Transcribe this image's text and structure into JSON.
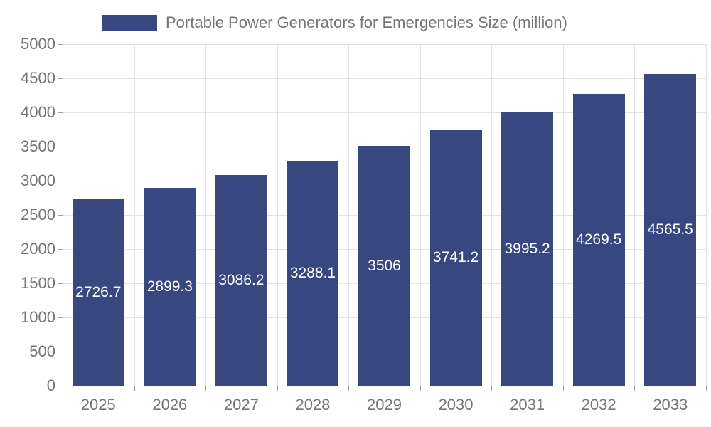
{
  "chart_data": {
    "type": "bar",
    "title": "Portable Power Generators for Emergencies Size (million)",
    "categories": [
      "2025",
      "2026",
      "2027",
      "2028",
      "2029",
      "2030",
      "2031",
      "2032",
      "2033"
    ],
    "values": [
      2726.7,
      2899.3,
      3086.2,
      3288.1,
      3506,
      3741.2,
      3995.2,
      4269.5,
      4565.5
    ],
    "bar_labels": [
      "2726.7",
      "2899.3",
      "3086.2",
      "3288.1",
      "3506",
      "3741.2",
      "3995.2",
      "4269.5",
      "4565.5"
    ],
    "xlabel": "",
    "ylabel": "",
    "ylim": [
      0,
      5000
    ],
    "yticks": [
      0,
      500,
      1000,
      1500,
      2000,
      2500,
      3000,
      3500,
      4000,
      4500,
      5000
    ],
    "grid": "on",
    "legend_position": "top-left",
    "colors": {
      "bar": "#374880",
      "bar_label_text": "#ffffff",
      "gridline": "#e2e2e2",
      "axis_line": "#a0a0a0",
      "tick_label": "#757575",
      "legend_text": "#757575",
      "background": "#ffffff"
    }
  }
}
